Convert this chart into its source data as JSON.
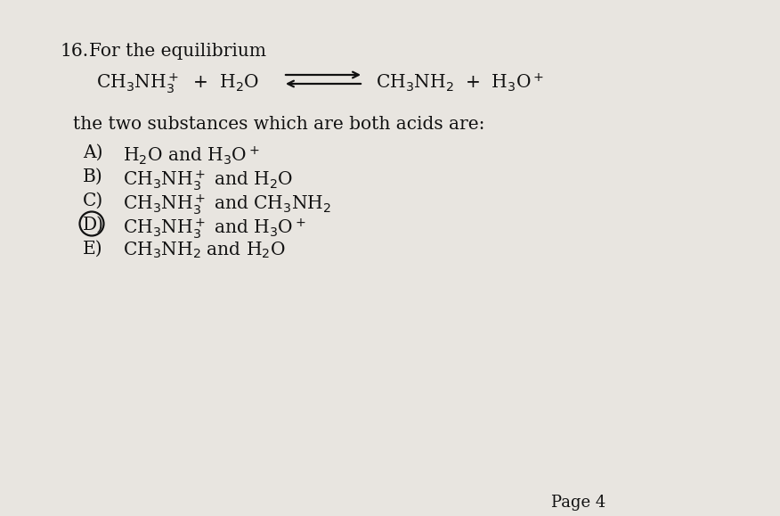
{
  "background_color": "#e8e5e0",
  "question_number": "16.",
  "intro_text": "For the equilibrium",
  "body_text": "the two substances which are both acids are:",
  "options": [
    {
      "label": "A)",
      "latex": "H$_2$O and H$_3$O$^+$",
      "circled": false
    },
    {
      "label": "B)",
      "latex": "CH$_3$NH$_3^+$ and H$_2$O",
      "circled": false
    },
    {
      "label": "C)",
      "latex": "CH$_3$NH$_3^+$ and CH$_3$NH$_2$",
      "circled": false
    },
    {
      "label": "D)",
      "latex": "CH$_3$NH$_3^+$ and H$_3$O$^+$",
      "circled": true
    },
    {
      "label": "E)",
      "latex": "CH$_3$NH$_2$ and H$_2$O",
      "circled": false
    }
  ],
  "page_text": "Page 4",
  "text_color": "#111111",
  "font_size_main": 14.5
}
